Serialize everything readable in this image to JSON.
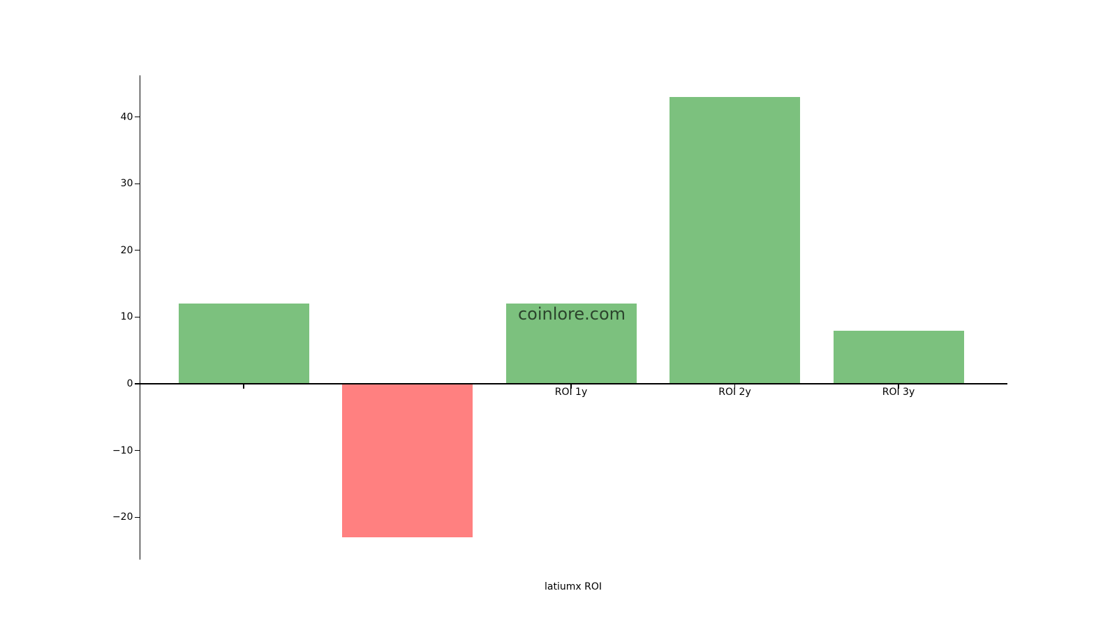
{
  "chart_data": {
    "type": "bar",
    "title": "",
    "xlabel": "latiumx ROI",
    "ylabel": "",
    "categories": [
      "",
      "",
      "ROI 1y",
      "ROI 2y",
      "ROI 3y"
    ],
    "values": [
      12,
      -23,
      12,
      43,
      8
    ],
    "positive_color": "#7cc17e",
    "negative_color": "#ff8080",
    "bar_colors": [
      "#7cc17e",
      "#ff8080",
      "#7cc17e",
      "#7cc17e",
      "#7cc17e"
    ],
    "y_ticks": [
      40,
      30,
      20,
      10,
      0,
      -10,
      -20
    ],
    "y_tick_labels": [
      "40",
      "30",
      "20",
      "10",
      "0",
      "−10",
      "−20"
    ],
    "ylim": [
      -26.3,
      46.3
    ],
    "grid": false,
    "legend": "none",
    "axis_color": "#000000"
  },
  "watermark": {
    "text": "coinlore.com"
  }
}
